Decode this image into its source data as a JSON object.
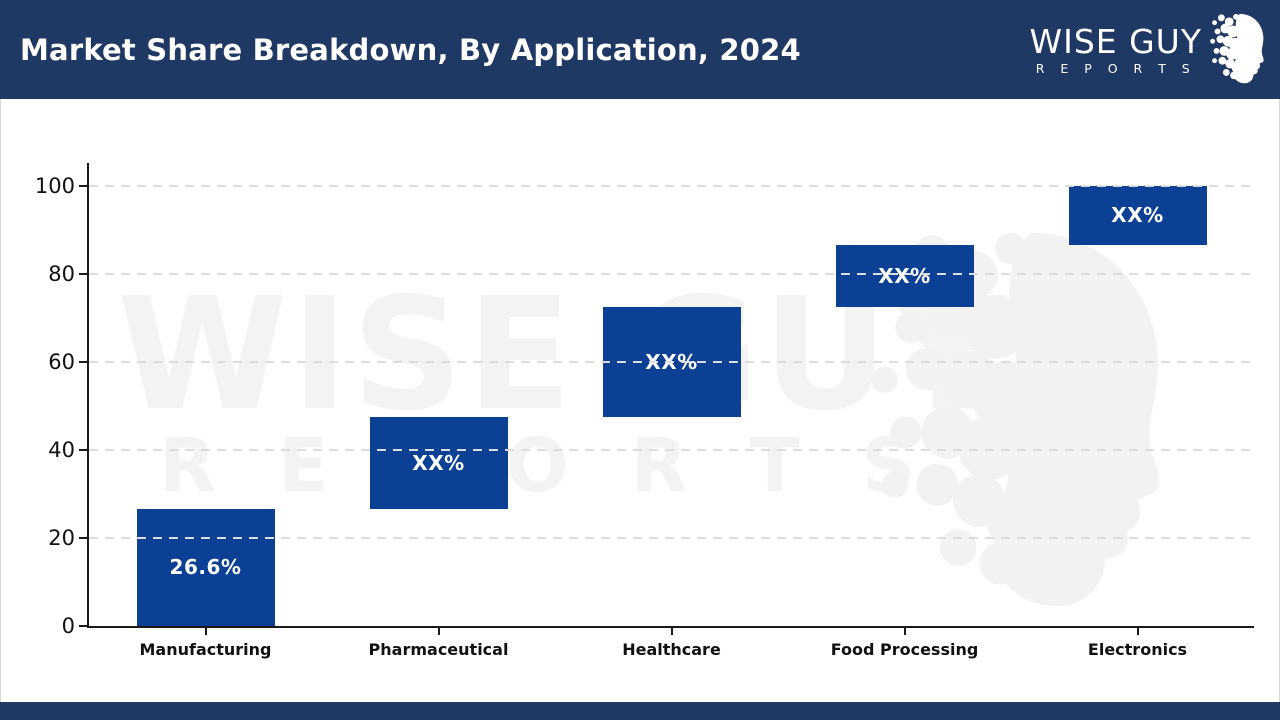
{
  "header": {
    "title": "Market Share Breakdown, By Application, 2024",
    "logo": {
      "line1": "WISE GUY",
      "line2": "R E P O R T S"
    }
  },
  "watermark": {
    "line1": "WISE GUY",
    "line2": "R E P O R T S"
  },
  "chart_data": {
    "type": "bar",
    "variant": "waterfall-floating-bars",
    "title": "Market Share Breakdown, By Application, 2024",
    "categories": [
      "Manufacturing",
      "Pharmaceutical",
      "Healthcare",
      "Food Processing",
      "Electronics"
    ],
    "segments": [
      {
        "category": "Manufacturing",
        "start": 0,
        "end": 26.6,
        "label": "26.6%"
      },
      {
        "category": "Pharmaceutical",
        "start": 26.6,
        "end": 47.5,
        "label": "XX%"
      },
      {
        "category": "Healthcare",
        "start": 47.5,
        "end": 72.4,
        "label": "XX%"
      },
      {
        "category": "Food Processing",
        "start": 72.4,
        "end": 86.6,
        "label": "XX%"
      },
      {
        "category": "Electronics",
        "start": 86.6,
        "end": 100,
        "label": "XX%"
      }
    ],
    "yticks": [
      0,
      20,
      40,
      60,
      80,
      100
    ],
    "ylim": [
      0,
      100
    ],
    "xlabel": "",
    "ylabel": "",
    "grid": "dashed-horizontal",
    "legend": "none"
  },
  "colors": {
    "header_bg": "#1f3864",
    "footer_bg": "#1f3864",
    "bar": "#0b4094",
    "bar_label": "#ffffff",
    "gridline": "#dcdcdc",
    "axis": "#1a1a1a",
    "watermark": "#f3f3f3"
  }
}
